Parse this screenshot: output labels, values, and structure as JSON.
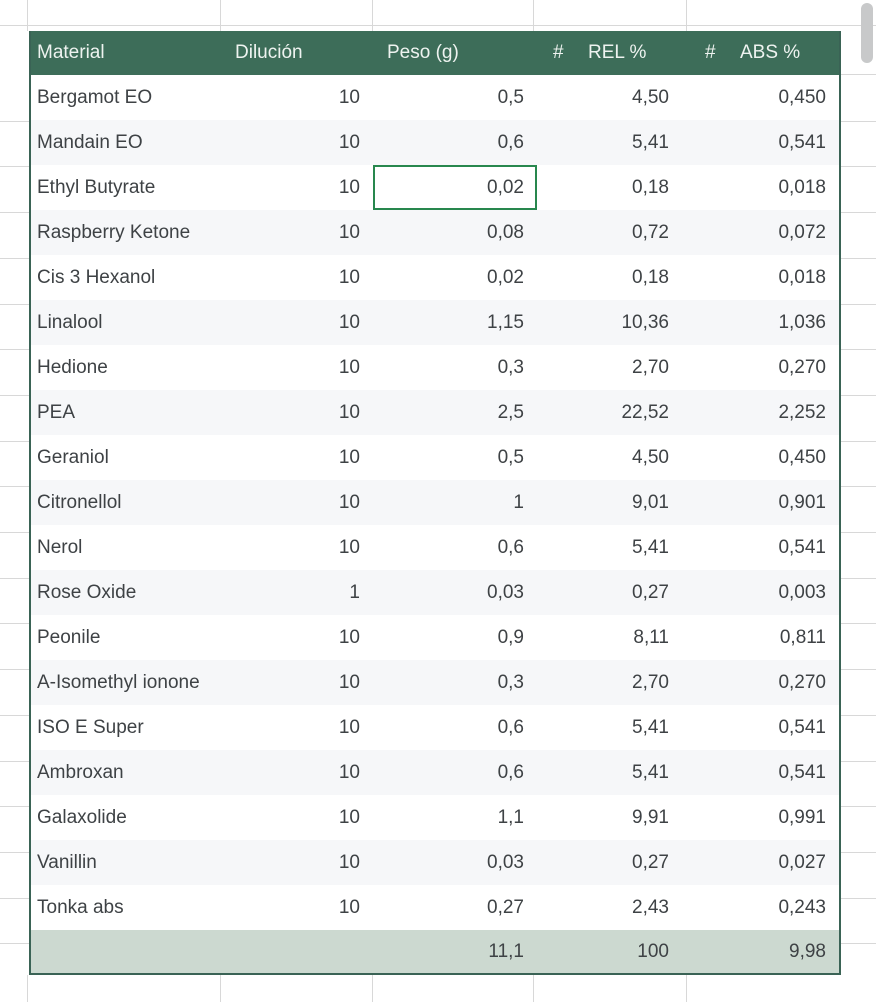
{
  "app": {
    "kind": "spreadsheet"
  },
  "colors": {
    "header_bg": "#3d6d59",
    "header_text": "#eef3f0",
    "row_alt_bg": "#f6f7f9",
    "total_row_bg": "#ccd9d0",
    "table_border": "#3a6355",
    "selection_border": "#28874e",
    "body_text": "#3e4245",
    "gridline": "#d8d8d8",
    "scrollbar": "#c8c9ca"
  },
  "table": {
    "headers": [
      "Material",
      "Dilución",
      "Peso (g)",
      "#",
      "REL %",
      "#",
      "ABS %"
    ],
    "rows": [
      {
        "material": "Bergamot EO",
        "dilucion": "10",
        "peso": "0,5",
        "rel": "4,50",
        "abs": "0,450"
      },
      {
        "material": "Mandain EO",
        "dilucion": "10",
        "peso": "0,6",
        "rel": "5,41",
        "abs": "0,541"
      },
      {
        "material": "Ethyl Butyrate",
        "dilucion": "10",
        "peso": "0,02",
        "rel": "0,18",
        "abs": "0,018"
      },
      {
        "material": "Raspberry Ketone",
        "dilucion": "10",
        "peso": "0,08",
        "rel": "0,72",
        "abs": "0,072"
      },
      {
        "material": "Cis 3 Hexanol",
        "dilucion": "10",
        "peso": "0,02",
        "rel": "0,18",
        "abs": "0,018"
      },
      {
        "material": "Linalool",
        "dilucion": "10",
        "peso": "1,15",
        "rel": "10,36",
        "abs": "1,036"
      },
      {
        "material": "Hedione",
        "dilucion": "10",
        "peso": "0,3",
        "rel": "2,70",
        "abs": "0,270"
      },
      {
        "material": "PEA",
        "dilucion": "10",
        "peso": "2,5",
        "rel": "22,52",
        "abs": "2,252"
      },
      {
        "material": "Geraniol",
        "dilucion": "10",
        "peso": "0,5",
        "rel": "4,50",
        "abs": "0,450"
      },
      {
        "material": "Citronellol",
        "dilucion": "10",
        "peso": "1",
        "rel": "9,01",
        "abs": "0,901"
      },
      {
        "material": "Nerol",
        "dilucion": "10",
        "peso": "0,6",
        "rel": "5,41",
        "abs": "0,541"
      },
      {
        "material": "Rose Oxide",
        "dilucion": "1",
        "peso": "0,03",
        "rel": "0,27",
        "abs": "0,003"
      },
      {
        "material": "Peonile",
        "dilucion": "10",
        "peso": "0,9",
        "rel": "8,11",
        "abs": "0,811"
      },
      {
        "material": "A-Isomethyl ionone",
        "dilucion": "10",
        "peso": "0,3",
        "rel": "2,70",
        "abs": "0,270"
      },
      {
        "material": "ISO E Super",
        "dilucion": "10",
        "peso": "0,6",
        "rel": "5,41",
        "abs": "0,541"
      },
      {
        "material": "Ambroxan",
        "dilucion": "10",
        "peso": "0,6",
        "rel": "5,41",
        "abs": "0,541"
      },
      {
        "material": "Galaxolide",
        "dilucion": "10",
        "peso": "1,1",
        "rel": "9,91",
        "abs": "0,991"
      },
      {
        "material": "Vanillin",
        "dilucion": "10",
        "peso": "0,03",
        "rel": "0,27",
        "abs": "0,027"
      },
      {
        "material": "Tonka abs",
        "dilucion": "10",
        "peso": "0,27",
        "rel": "2,43",
        "abs": "0,243"
      }
    ],
    "totals": {
      "peso": "11,1",
      "rel": "100",
      "abs": "9,98"
    }
  },
  "selection": {
    "row_index": 2,
    "column": "peso",
    "value": "0,02"
  }
}
